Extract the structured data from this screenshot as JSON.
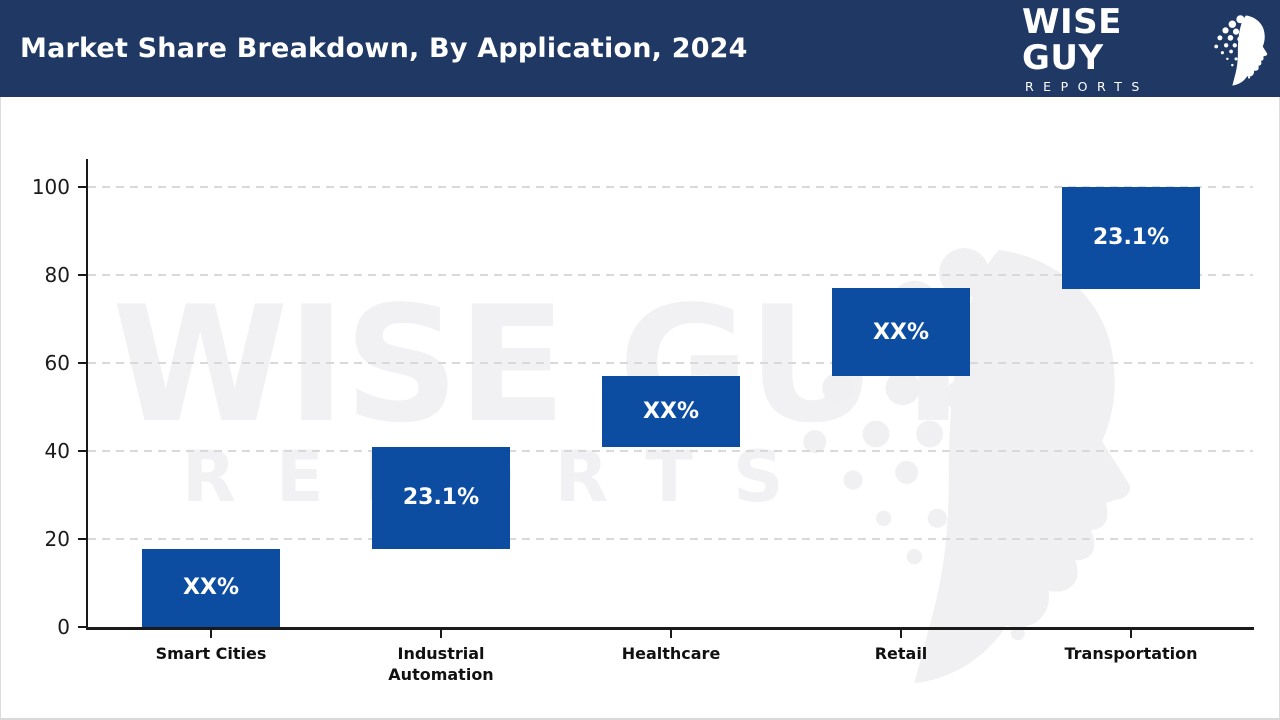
{
  "header": {
    "title": "Market Share Breakdown, By Application, 2024",
    "background_color": "#1f3864",
    "logo": {
      "line1": "WISE GUY",
      "line2": "REPORTS"
    }
  },
  "watermark": {
    "line1": "WISE GUY",
    "line2": "REPORTS"
  },
  "chart_data": {
    "type": "bar",
    "subtype": "floating-waterfall",
    "title": "Market Share Breakdown, By Application, 2024",
    "categories": [
      "Smart Cities",
      "Industrial Automation",
      "Healthcare",
      "Retail",
      "Transportation"
    ],
    "segments": [
      {
        "category": "Smart Cities",
        "start": 0,
        "end": 17.8,
        "label": "XX%"
      },
      {
        "category": "Industrial Automation",
        "start": 17.8,
        "end": 40.9,
        "label": "23.1%"
      },
      {
        "category": "Healthcare",
        "start": 40.9,
        "end": 57.0,
        "label": "XX%"
      },
      {
        "category": "Retail",
        "start": 57.0,
        "end": 77.0,
        "label": "XX%"
      },
      {
        "category": "Transportation",
        "start": 76.9,
        "end": 100,
        "label": "23.1%"
      }
    ],
    "ylim": [
      0,
      100
    ],
    "yticks": [
      0,
      20,
      40,
      60,
      80,
      100
    ],
    "xlabel": "",
    "ylabel": "",
    "grid": "horizontal-dashed",
    "legend": "none",
    "bar_color": "#0d4da1",
    "bar_label_color": "#ffffff",
    "axis_color": "#1a1a1a",
    "grid_color": "#d9d9d9",
    "tick_label_color": "#1a1a1a",
    "category_label_color": "#111111"
  }
}
